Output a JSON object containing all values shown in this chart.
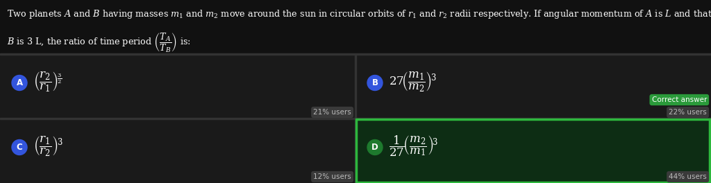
{
  "bg_color": "#111111",
  "question_bg": "#111111",
  "question_text_color": "#ffffff",
  "options_bg": "#1a1a1a",
  "correct_bg": "#0d2d14",
  "correct_border": "#2db83d",
  "divider_color": "#333333",
  "label_blue_bg": "#3355dd",
  "label_green_bg": "#1e7a2e",
  "users_bg": "#3a3a3a",
  "users_color": "#cccccc",
  "correct_answer_bg": "#2a9a3a",
  "correct_answer_color": "#ffffff",
  "correct_answer_text": "Correct answer",
  "opt_a_formula": "$\\left(\\dfrac{r_2}{r_1}\\right)^{\\!\\frac{3}{2}}$",
  "opt_b_formula": "$27\\!\\left(\\dfrac{m_1}{m_2}\\right)^{\\!3}$",
  "opt_c_formula": "$\\left(\\dfrac{r_1}{r_2}\\right)^{\\!3}$",
  "opt_d_formula": "$\\dfrac{1}{27}\\!\\left(\\dfrac{m_2}{m_1}\\right)^{\\!3}$",
  "opt_a_users": "21% users",
  "opt_b_users": "22% users",
  "opt_c_users": "12% users",
  "opt_d_users": "44% users",
  "question_line1": "Two planets $A$ and $B$ having masses $m_1$ and $m_2$ move around the sun in circular orbits of $r_1$ and $r_2$ radii respectively. If angular momentum of $A$ is $L$ and that of",
  "question_line2": "$B$ is 3 L, the ratio of time period $\\left(\\dfrac{T_A}{T_B}\\right)$ is:"
}
